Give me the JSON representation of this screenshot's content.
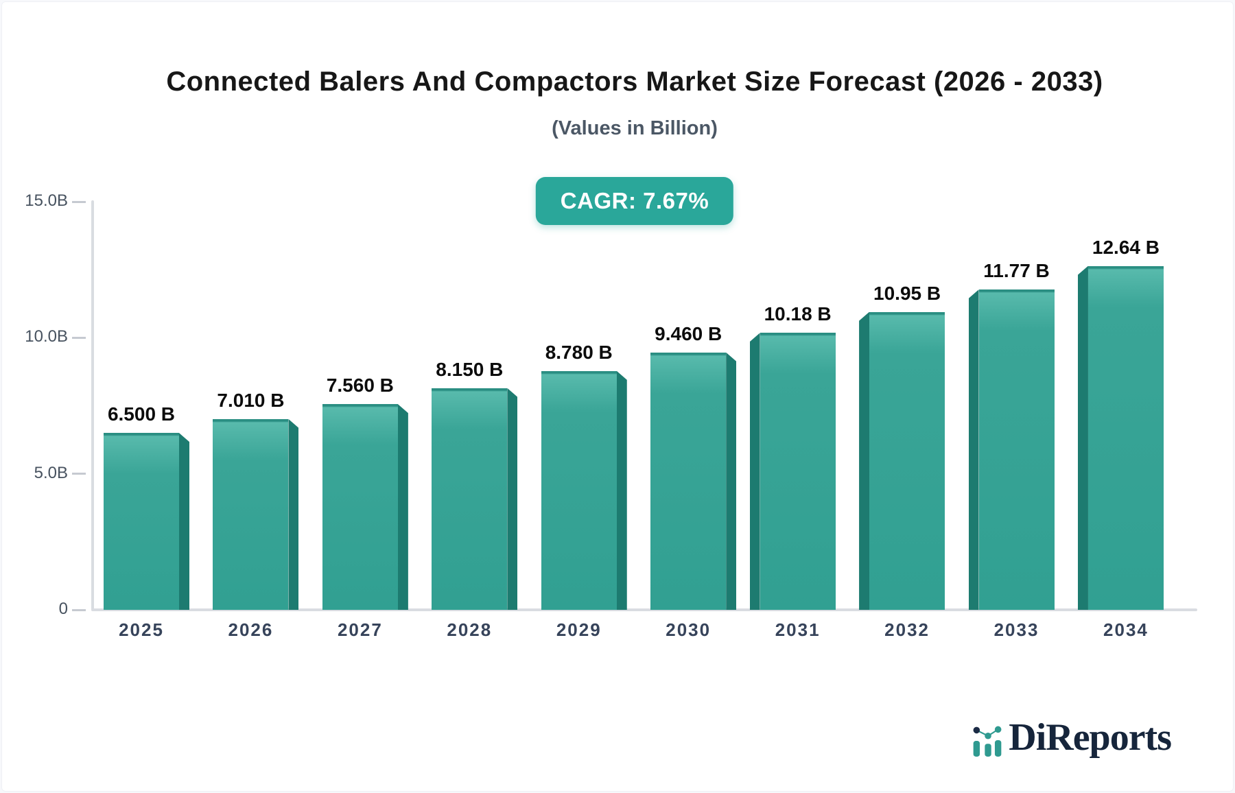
{
  "header": {
    "title": "Connected Balers And Compactors Market Size Forecast (2026 - 2033)",
    "subtitle": "(Values in Billion)",
    "cagr_label": "CAGR: 7.67%"
  },
  "brand": {
    "name": "DiReports"
  },
  "colors": {
    "accent_teal": "#2aa79a",
    "bar_face": "#35a496",
    "bar_face_top": "#58baac",
    "bar_side_dark": "#1d7b70",
    "axis_gray": "#d9dce1",
    "title_text": "#171717",
    "subtitle_text": "#4b5765",
    "axis_label_text": "#47525f",
    "year_label_text": "#36435a",
    "value_label_text": "#0c0c0c",
    "logo_navy": "#16253b",
    "badge_text": "#ffffff"
  },
  "chart_data": {
    "type": "bar",
    "title": "Connected Balers And Compactors Market Size Forecast (2026 - 2033)",
    "subtitle": "(Values in Billion)",
    "annotation": "CAGR: 7.67%",
    "categories": [
      "2025",
      "2026",
      "2027",
      "2028",
      "2029",
      "2030",
      "2031",
      "2032",
      "2033",
      "2034"
    ],
    "values": [
      6.5,
      7.01,
      7.56,
      8.15,
      8.78,
      9.46,
      10.18,
      10.95,
      11.77,
      12.64
    ],
    "value_labels": [
      "6.500 B",
      "7.010 B",
      "7.560 B",
      "8.150 B",
      "8.780 B",
      "9.460 B",
      "10.18 B",
      "10.95 B",
      "11.77 B",
      "12.64 B"
    ],
    "xlabel": "",
    "ylabel": "",
    "ylim": [
      0,
      15
    ],
    "yticks": {
      "values": [
        15,
        10,
        5,
        0
      ],
      "labels": [
        "15.0B",
        "10.0B",
        "5.0B",
        "0"
      ]
    },
    "grid": false,
    "legend": false,
    "bar_style": "3d-extruded"
  }
}
